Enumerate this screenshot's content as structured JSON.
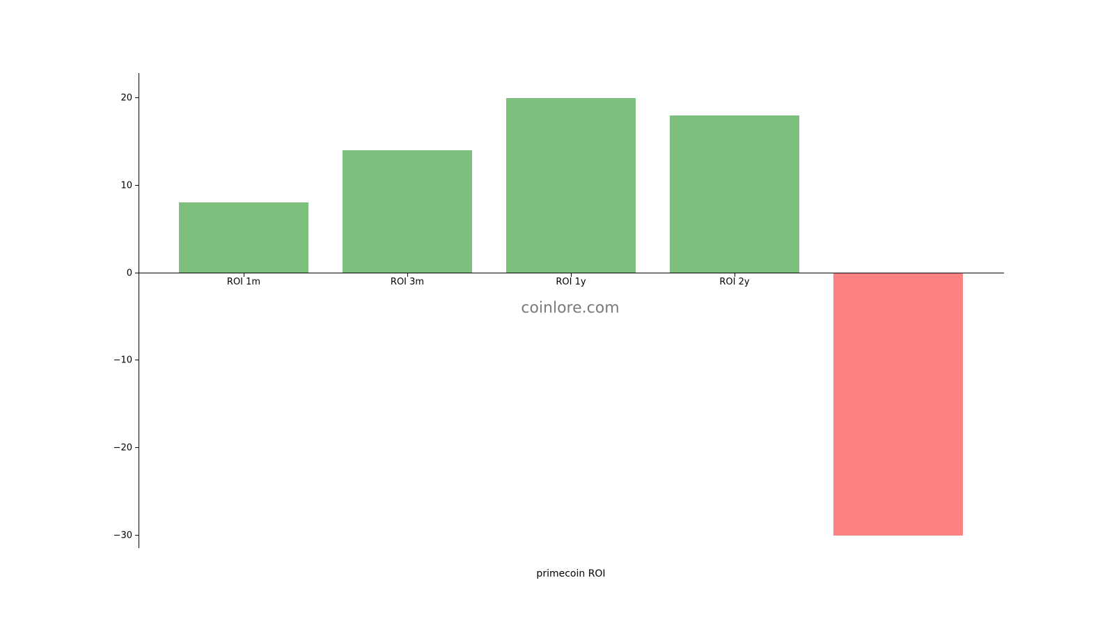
{
  "chart_data": {
    "type": "bar",
    "title": "primecoin ROI",
    "watermark": "coinlore.com",
    "categories": [
      "ROI 1m",
      "ROI 3m",
      "ROI 1y",
      "ROI 2y",
      ""
    ],
    "values": [
      8,
      14,
      20,
      18,
      -30
    ],
    "bar_colors": [
      "#7dc07d",
      "#7dc07d",
      "#7dc07d",
      "#7dc07d",
      "#fc8181"
    ],
    "positive_color": "#7dc07d",
    "negative_color": "#fc8181",
    "y_ticks": [
      20,
      10,
      0,
      -10,
      -20,
      -30
    ],
    "y_tick_labels": [
      "20",
      "10",
      "0",
      "−10",
      "−20",
      "−30"
    ],
    "ylim": [
      -31.5,
      22.9
    ],
    "xlabel": "",
    "ylabel": "",
    "grid": false,
    "legend_position": "none",
    "axis_color": "#000000",
    "tick_label_color": "#000000",
    "watermark_color": "#7a7a7a"
  }
}
